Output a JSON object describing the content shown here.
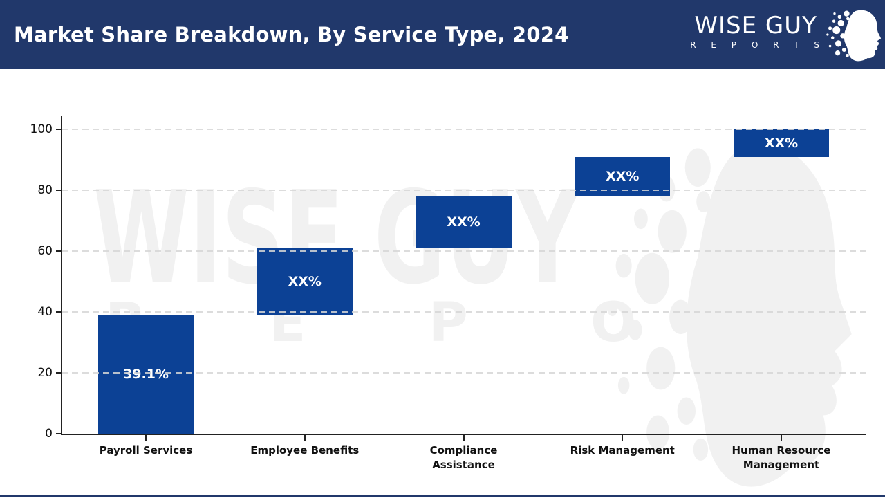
{
  "header": {
    "title": "Market Share Breakdown, By Service Type, 2024",
    "logo": {
      "wordmark": "WISE GUY",
      "subtext": "R E P O R T S",
      "icon": "wise-guy-head-icon"
    }
  },
  "watermark": {
    "line1": "WISE GUY",
    "line2": "R E P O R T S",
    "icon": "wise-guy-head-watermark-icon"
  },
  "colors": {
    "header_bg": "#21386b",
    "bar_blue": "#0c4195",
    "grid_gray": "#d6d6d6",
    "axis_black": "#222222",
    "watermark_gray": "#f1f1f1",
    "bar_label_text": "#ffffff"
  },
  "chart_data": {
    "type": "bar",
    "variant": "waterfall",
    "title": "Market Share Breakdown, By Service Type, 2024",
    "xlabel": "",
    "ylabel": "",
    "ylim": [
      0,
      105
    ],
    "yticks": [
      0,
      20,
      40,
      60,
      80,
      100
    ],
    "grid": "horizontal-dashed",
    "legend": false,
    "bars": [
      {
        "category": "Payroll Services",
        "start": 0,
        "end": 39.1,
        "label": "39.1%"
      },
      {
        "category": "Employee Benefits",
        "start": 39.1,
        "end": 61,
        "label": "XX%"
      },
      {
        "category": "Compliance\nAssistance",
        "start": 61,
        "end": 78,
        "label": "XX%"
      },
      {
        "category": "Risk Management",
        "start": 78,
        "end": 91,
        "label": "XX%"
      },
      {
        "category": "Human Resource\nManagement",
        "start": 91,
        "end": 100,
        "label": "XX%"
      }
    ]
  }
}
